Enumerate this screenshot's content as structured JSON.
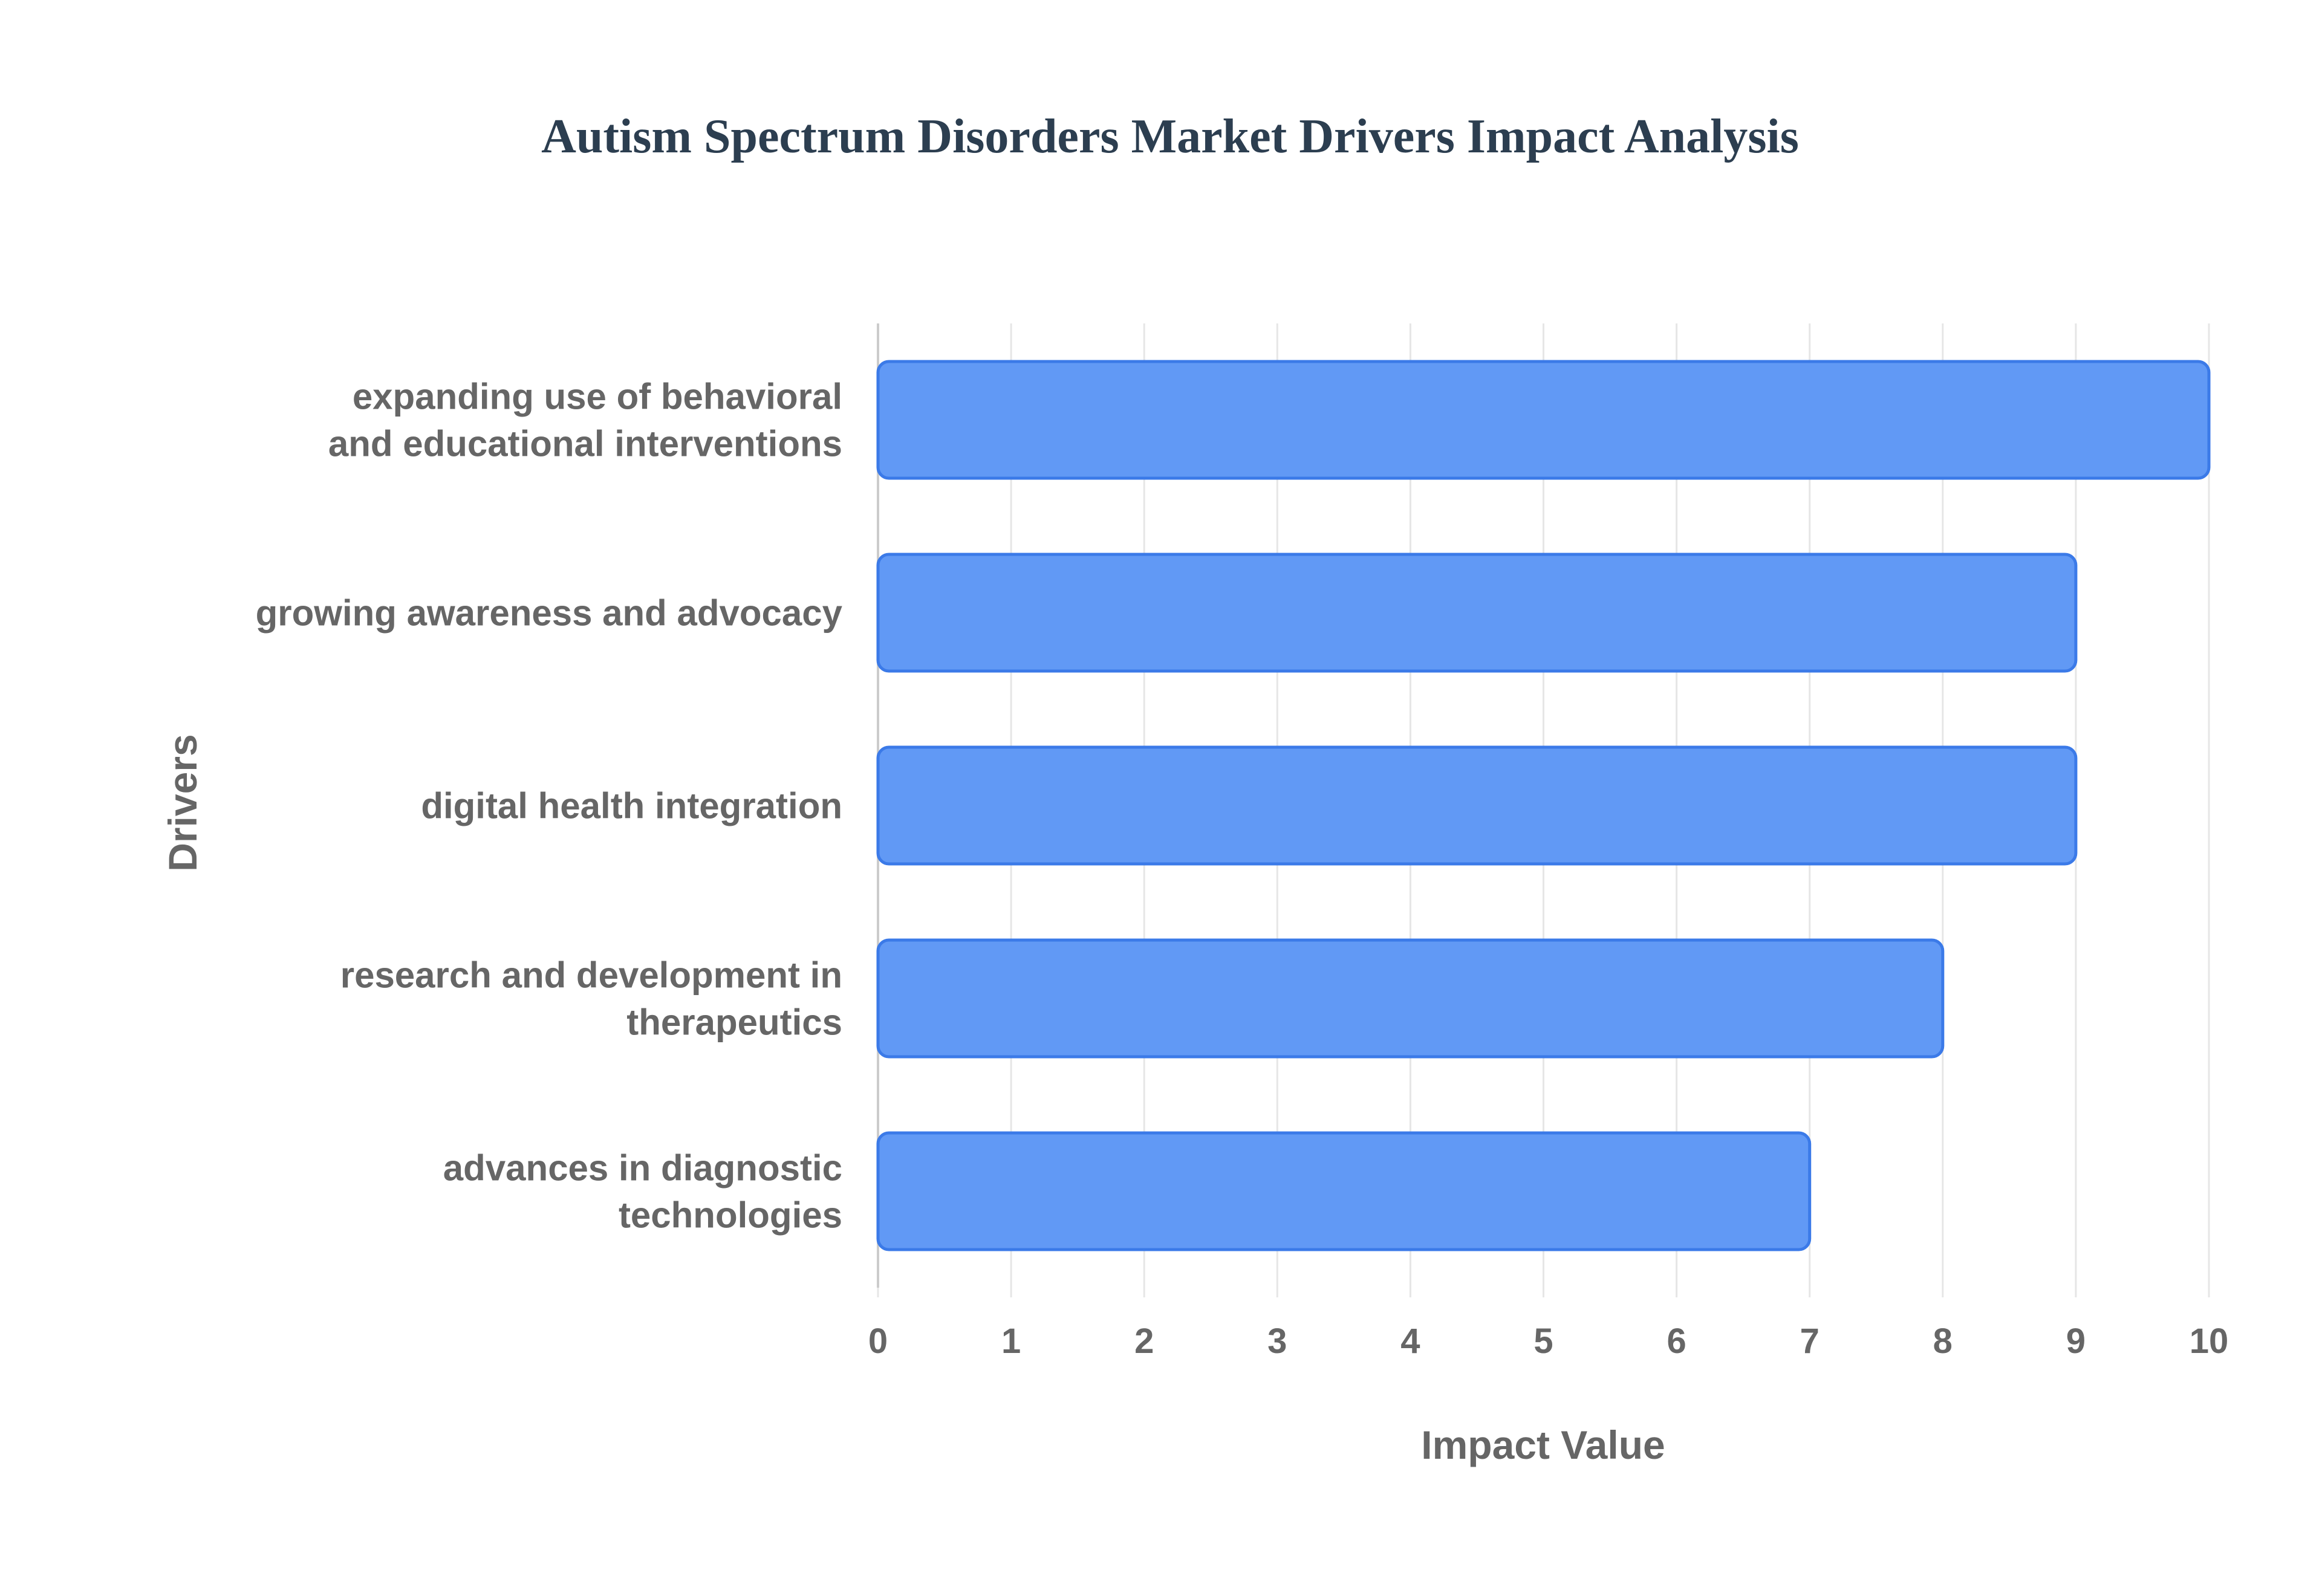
{
  "chart_data": {
    "type": "bar",
    "orientation": "horizontal",
    "title": "Autism Spectrum Disorders Market Drivers Impact Analysis",
    "xlabel": "Impact Value",
    "ylabel": "Drivers",
    "xlim": [
      0,
      10
    ],
    "x_ticks": [
      "0",
      "1",
      "2",
      "3",
      "4",
      "5",
      "6",
      "7",
      "8",
      "9",
      "10"
    ],
    "grid": true,
    "categories": [
      [
        "expanding use of behavioral",
        "and educational interventions"
      ],
      [
        "growing awareness and advocacy"
      ],
      [
        "digital health integration"
      ],
      [
        "research and development in",
        "therapeutics"
      ],
      [
        "advances in diagnostic",
        "technologies"
      ]
    ],
    "values": [
      10,
      9,
      9,
      8,
      7
    ],
    "colors": {
      "bar_fill": "#6199f5",
      "bar_stroke": "#3b7ae8",
      "grid": "#e6e6e6",
      "axis": "#cccccc",
      "title": "#2c3e50",
      "text": "#666666"
    }
  }
}
